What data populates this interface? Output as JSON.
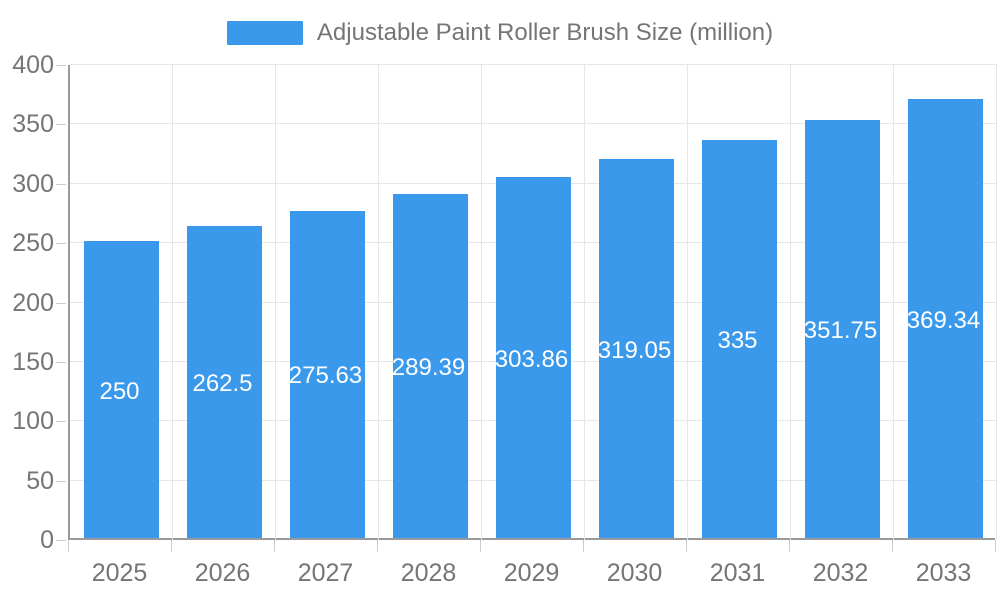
{
  "legend": {
    "label": "Adjustable Paint Roller Brush Size (million)"
  },
  "chart_data": {
    "type": "bar",
    "title": "",
    "xlabel": "",
    "ylabel": "",
    "categories": [
      "2025",
      "2026",
      "2027",
      "2028",
      "2029",
      "2030",
      "2031",
      "2032",
      "2033"
    ],
    "series": [
      {
        "name": "Adjustable Paint Roller Brush Size (million)",
        "values": [
          250,
          262.5,
          275.63,
          289.39,
          303.86,
          319.05,
          335,
          351.75,
          369.34
        ]
      }
    ],
    "value_labels": [
      "250",
      "262.5",
      "275.63",
      "289.39",
      "303.86",
      "319.05",
      "335",
      "351.75",
      "369.34"
    ],
    "ylim": [
      0,
      400
    ],
    "yticks": [
      0,
      50,
      100,
      150,
      200,
      250,
      300,
      350,
      400
    ],
    "grid": true,
    "legend_position": "top-center"
  },
  "colors": {
    "bar": "#3b99ec",
    "value_label": "#ffffff",
    "axis_line": "#9a9a9a",
    "gridline": "#e6e6e6",
    "tick": "#cccccc",
    "text": "#757575",
    "background": "#ffffff"
  }
}
